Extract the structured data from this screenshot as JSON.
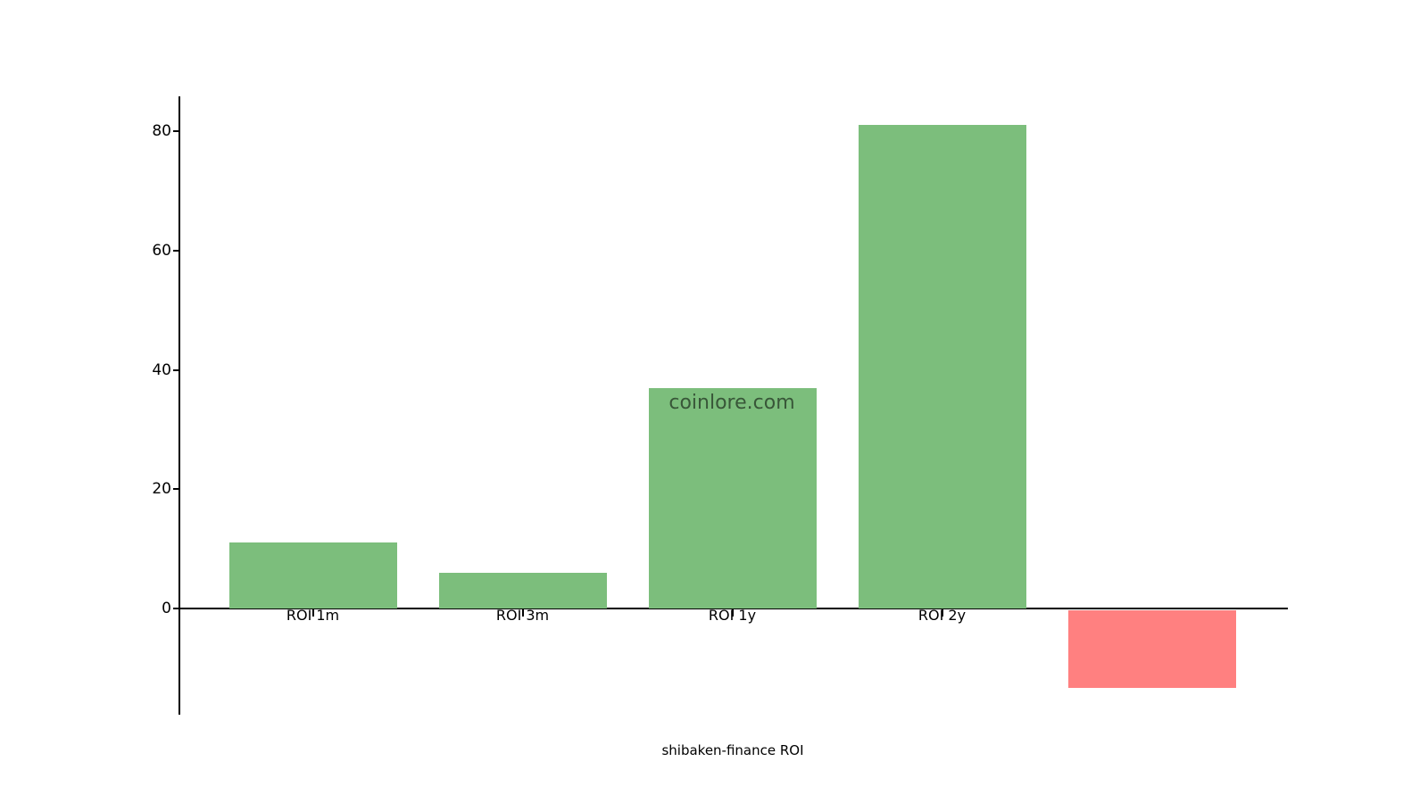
{
  "page": {
    "background_color": "#ffffff"
  },
  "chart_data": {
    "type": "bar",
    "title": "shibaken-finance ROI",
    "watermark": "coinlore.com",
    "categories": [
      "ROI 1m",
      "ROI 3m",
      "ROI 1y",
      "ROI 2y",
      ""
    ],
    "values": [
      11,
      6,
      37,
      81,
      -13
    ],
    "series": [
      {
        "name": "ROI",
        "values": [
          11,
          6,
          37,
          81,
          -13
        ]
      }
    ],
    "bar_colors": [
      "#7cbe7c",
      "#7cbe7c",
      "#7cbe7c",
      "#7cbe7c",
      "#ff8080"
    ],
    "positive_color": "#7cbe7c",
    "negative_color": "#ff8080",
    "axis_color": "#000000",
    "yticks": [
      0,
      20,
      40,
      60,
      80
    ],
    "ylim": [
      -17.8,
      85.8
    ],
    "xlabel": "",
    "ylabel": "",
    "grid": false,
    "legend": false
  }
}
